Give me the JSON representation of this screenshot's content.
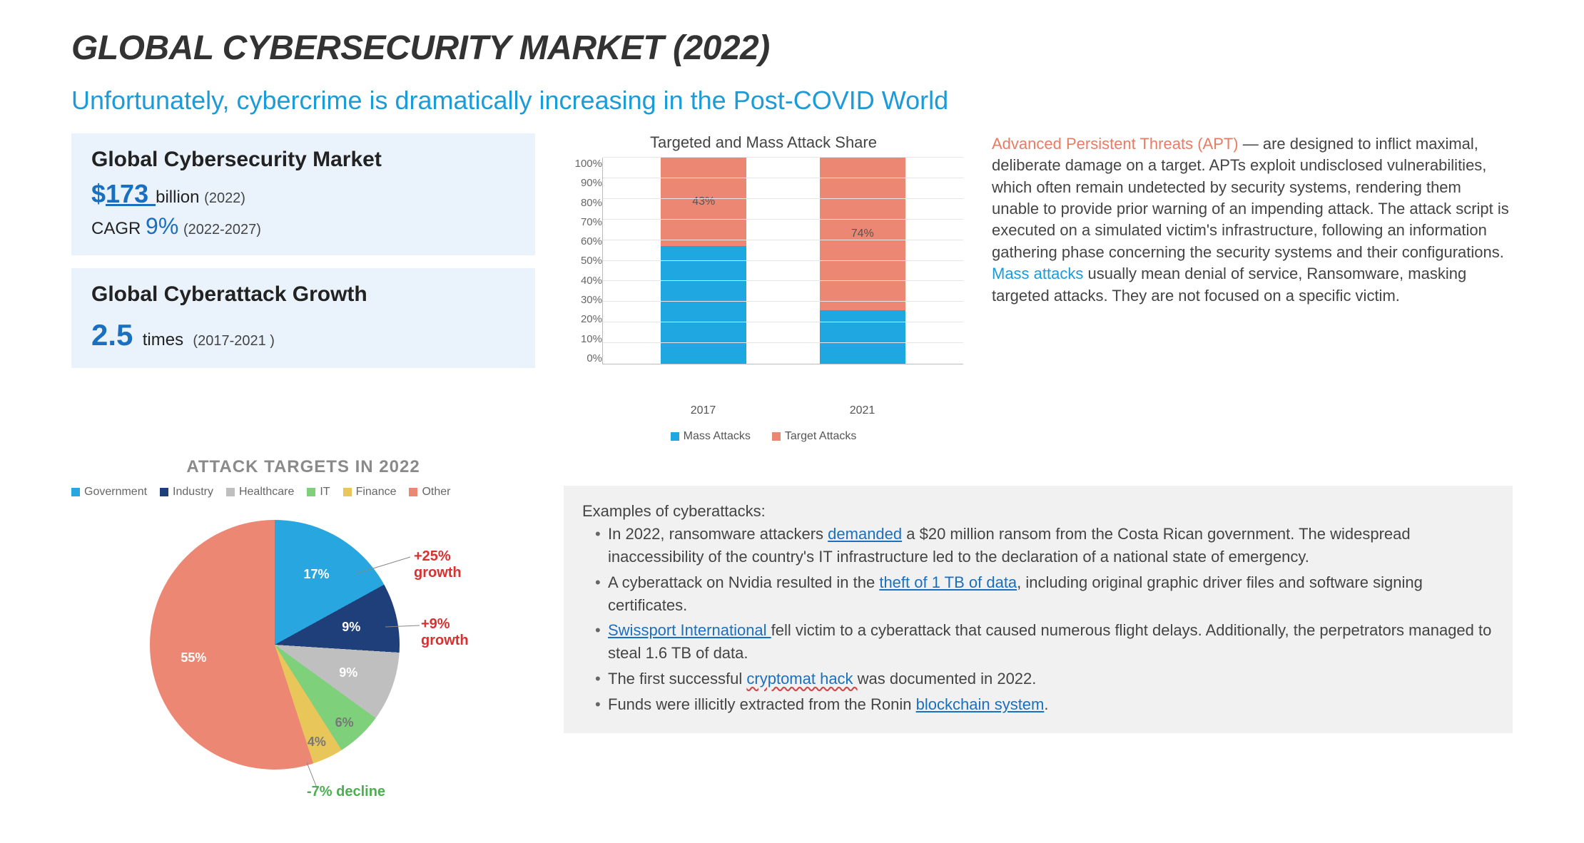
{
  "title": "GLOBAL CYBERSECURITY MARKET (2022)",
  "subtitle": "Unfortunately, cybercrime is dramatically increasing in the Post-COVID World",
  "colors": {
    "accent_blue": "#1b9bd8",
    "dark_blue": "#1b6fbf",
    "card_bg": "#eaf3fb",
    "salmon": "#e97b63",
    "grey_box": "#f1f1f1"
  },
  "stat_market": {
    "title": "Global Cybersecurity Market",
    "value_prefix": "$",
    "value": "173 ",
    "value_unit": "billion",
    "value_year": "(2022)",
    "cagr_label": "CAGR",
    "cagr_value": "9%",
    "cagr_period": "(2022-2027)"
  },
  "stat_growth": {
    "title": "Global Cyberattack Growth",
    "value": "2.5",
    "unit": "times",
    "period": "(2017-2021 )"
  },
  "bar_chart": {
    "title": "Targeted and Mass Attack Share",
    "type": "stacked-bar-100",
    "ylim": [
      0,
      100
    ],
    "ytick_step": 10,
    "y_suffix": "%",
    "categories": [
      "2017",
      "2021"
    ],
    "series": [
      {
        "name": "Mass Attacks",
        "color": "#1ea7e0",
        "values": [
          57,
          26
        ]
      },
      {
        "name": "Target Attacks",
        "color": "#ec8773",
        "values": [
          43,
          74
        ],
        "labels": [
          "43%",
          "74%"
        ]
      }
    ],
    "grid_color": "#e6e6e6",
    "label_fontsize": 15
  },
  "apt_text": {
    "apt_label": "Advanced Persistent Threats (APT)",
    "apt_body": " — are designed to inflict maximal, deliberate damage on a target. APTs exploit undisclosed vulnerabilities, which often remain undetected by security systems, rendering them unable to provide prior warning of an impending attack. The attack script is executed on a simulated victim's infrastructure, following an information gathering phase concerning the security systems and their configurations.",
    "mass_label": "Mass attacks",
    "mass_body": " usually mean denial of service, Ransomware, masking targeted attacks. They are not focused on a specific victim."
  },
  "pie": {
    "title": "ATTACK TARGETS IN 2022",
    "type": "pie",
    "slices": [
      {
        "label": "Government",
        "value": 17,
        "color": "#27a6df"
      },
      {
        "label": "Industry",
        "value": 9,
        "color": "#1f3f7a"
      },
      {
        "label": "Healthcare",
        "value": 9,
        "color": "#bfbfbf"
      },
      {
        "label": "IT",
        "value": 6,
        "color": "#7fd07a"
      },
      {
        "label": "Finance",
        "value": 4,
        "color": "#e8c65a"
      },
      {
        "label": "Other",
        "value": 55,
        "color": "#ec8773"
      }
    ],
    "callouts": [
      {
        "text": "+25% growth",
        "style": "red"
      },
      {
        "text": "+9% growth",
        "style": "red"
      },
      {
        "text": "-7% decline",
        "style": "green"
      }
    ]
  },
  "examples": {
    "heading": "Examples of cyberattacks:",
    "items": [
      {
        "pre": "In 2022, ransomware attackers ",
        "link": "demanded",
        "post": " a $20 million ransom from the Costa Rican government. The widespread inaccessibility of the country's IT infrastructure led to the declaration of a national state of emergency."
      },
      {
        "pre": "A cyberattack on Nvidia resulted in the ",
        "link": "theft of 1 TB of data",
        "post": ", including original graphic driver files and software signing certificates."
      },
      {
        "prelink": "Swissport International ",
        "post": "fell victim to a cyberattack that caused numerous flight delays. Additionally, the perpetrators managed to steal 1.6 TB of data."
      },
      {
        "pre": "The first successful ",
        "link_wavy": "cryptomat hack ",
        "post": "was documented in 2022."
      },
      {
        "pre": "Funds were illicitly extracted from the Ronin ",
        "link": "blockchain system",
        "post": "."
      }
    ]
  }
}
